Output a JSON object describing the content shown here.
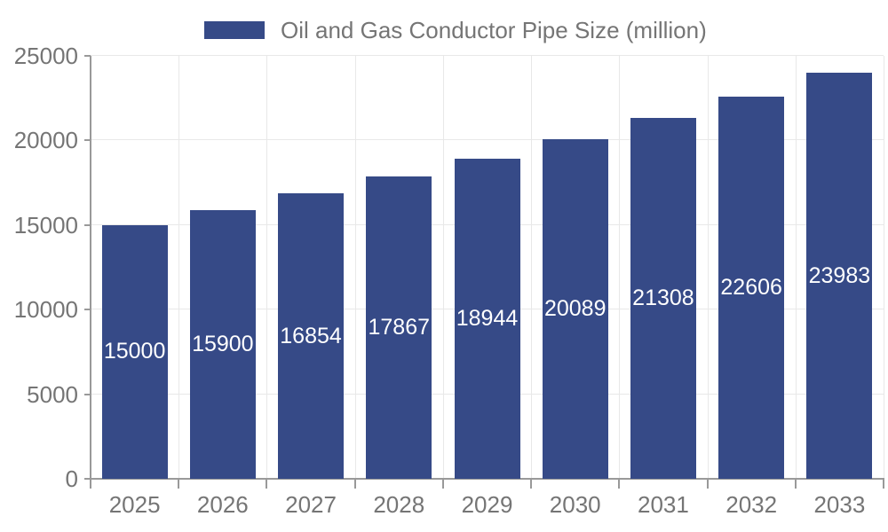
{
  "chart_data": {
    "type": "bar",
    "title": "Oil and Gas Conductor Pipe Size (million)",
    "categories": [
      "2025",
      "2026",
      "2027",
      "2028",
      "2029",
      "2030",
      "2031",
      "2032",
      "2033"
    ],
    "series": [
      {
        "name": "Oil and Gas Conductor Pipe Size (million)",
        "values": [
          15000,
          15900,
          16854,
          17867,
          18944,
          20089,
          21308,
          22606,
          23983
        ]
      }
    ],
    "xlabel": "",
    "ylabel": "",
    "ylim": [
      0,
      25000
    ],
    "yticks": [
      0,
      5000,
      10000,
      15000,
      20000,
      25000
    ],
    "grid": true,
    "legend_position": "top",
    "value_labels_visible": true,
    "value_label_position": "center-of-bar",
    "colors": {
      "bar": "#364a87",
      "axis_line": "#999999",
      "grid_line": "#e8e8e8",
      "tick_label": "#757575",
      "value_label": "#ffffff",
      "background": "#ffffff"
    }
  }
}
